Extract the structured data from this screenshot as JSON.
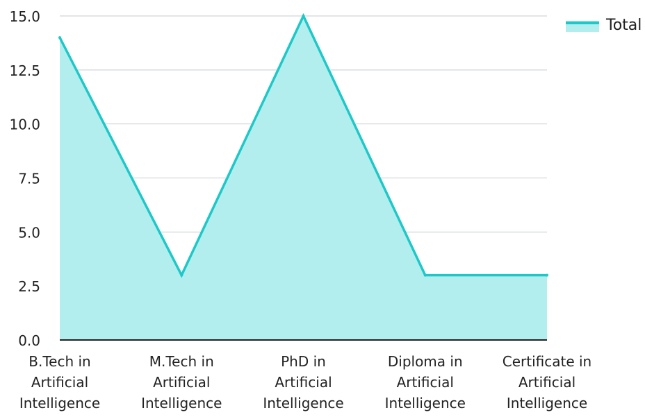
{
  "chart_data": {
    "type": "area",
    "categories": [
      [
        "B.Tech in",
        "Artificial",
        "Intelligence"
      ],
      [
        "M.Tech in",
        "Artificial",
        "Intelligence"
      ],
      [
        "PhD in",
        "Artificial",
        "Intelligence"
      ],
      [
        "Diploma in",
        "Artificial",
        "Intelligence"
      ],
      [
        "Certificate in",
        "Artificial",
        "Intelligence"
      ]
    ],
    "series": [
      {
        "name": "Total",
        "values": [
          14,
          3,
          15,
          3,
          3
        ],
        "line_color": "#1ec8c8",
        "fill_color": "#b2eeee"
      }
    ],
    "y_ticks": [
      "0.0",
      "2.5",
      "5.0",
      "7.5",
      "10.0",
      "12.5",
      "15.0"
    ],
    "ylim": [
      0,
      15
    ],
    "grid": true,
    "legend_position": "top-right",
    "grid_color": "#c5cbd0",
    "axis_color": "#222222"
  }
}
